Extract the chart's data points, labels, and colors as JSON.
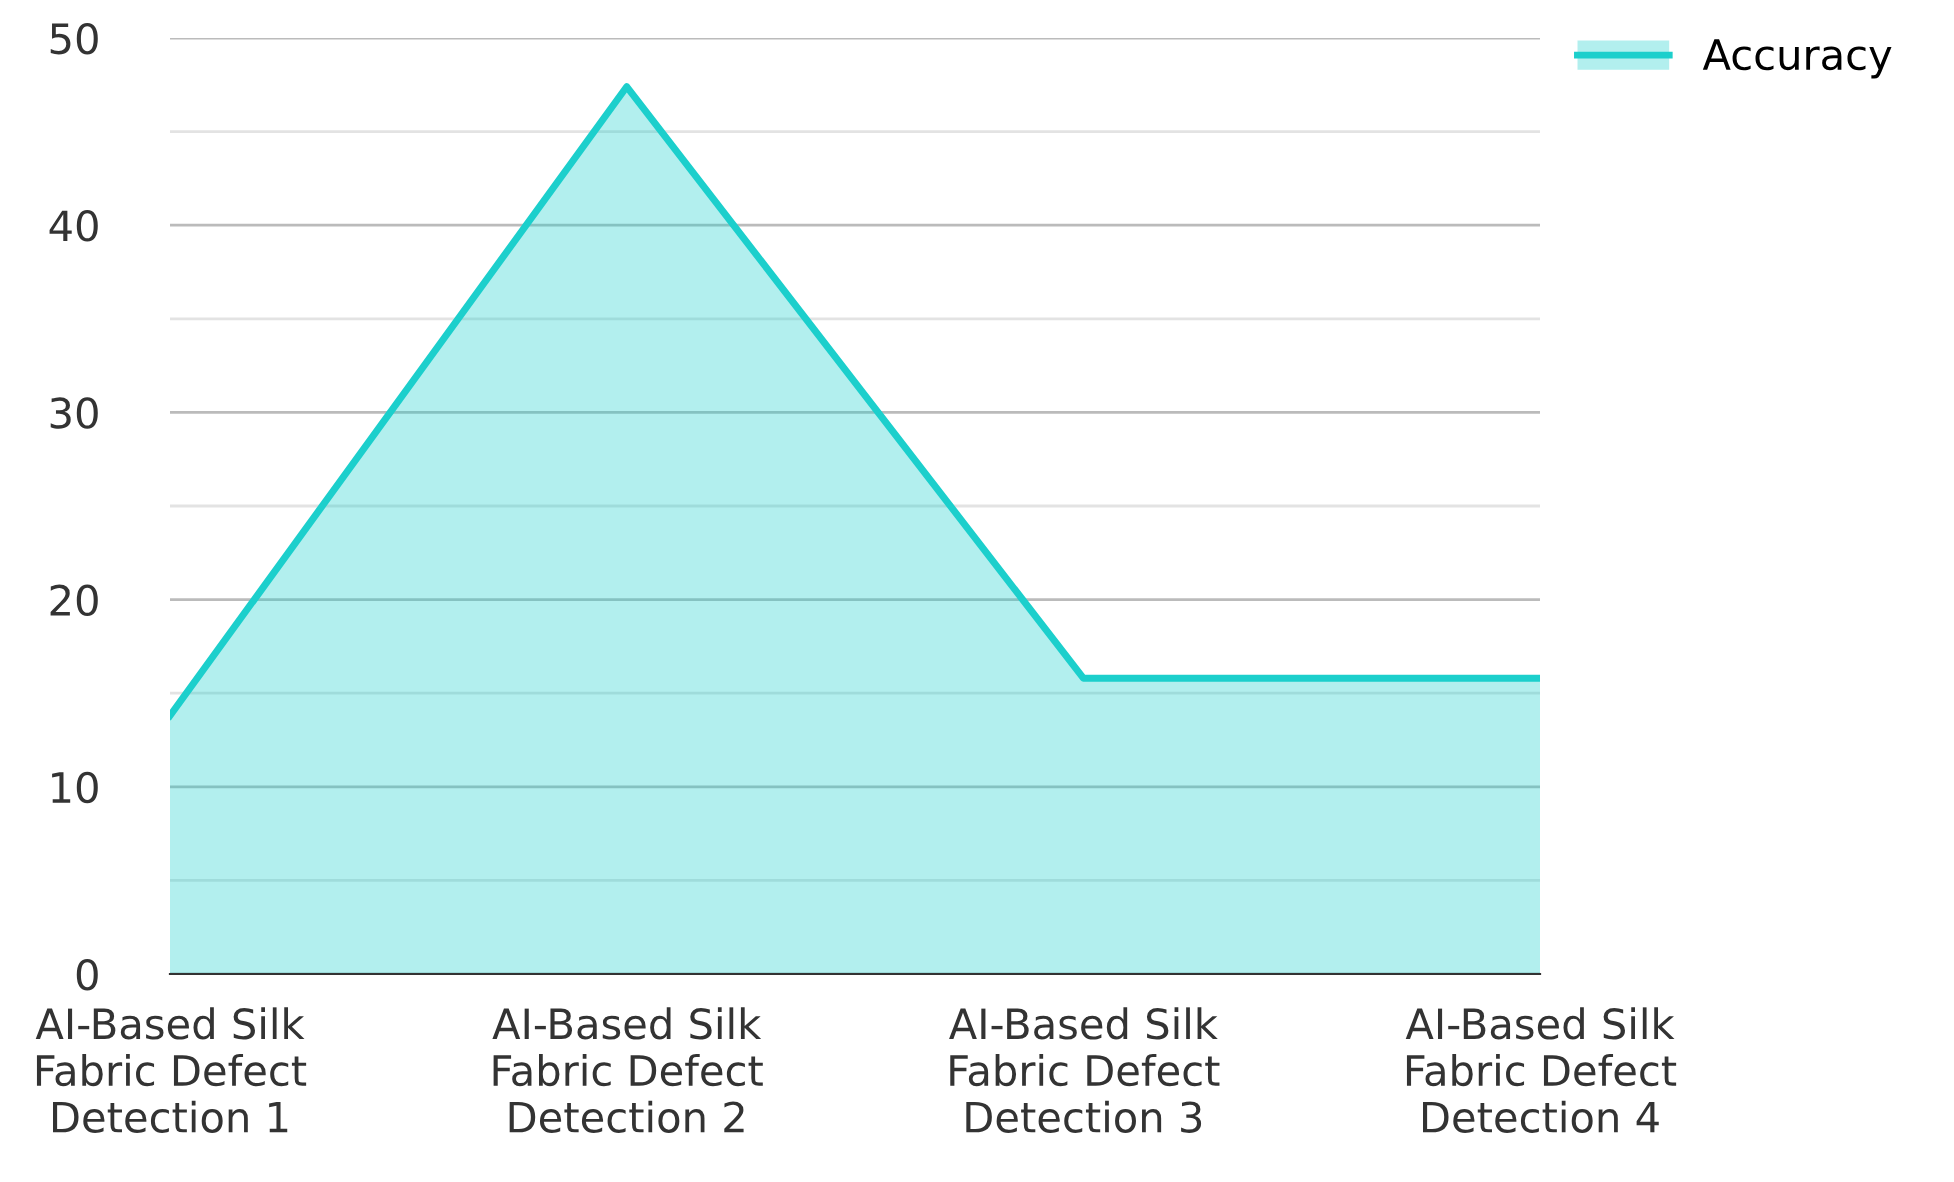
{
  "chart_data": {
    "type": "area",
    "categories": [
      "AI-Based Silk\nFabric Defect\nDetection 1",
      "AI-Based Silk\nFabric Defect\nDetection 2",
      "AI-Based Silk\nFabric Defect\nDetection 3",
      "AI-Based Silk\nFabric Defect\nDetection 4"
    ],
    "series": [
      {
        "name": "Accuracy",
        "color": "#1ccfcc",
        "values": [
          13.8,
          47.4,
          15.8,
          15.8
        ]
      }
    ],
    "ylim": [
      0,
      50
    ],
    "yticks": [
      0,
      {
        "value": 5,
        "label": null
      },
      10,
      {
        "value": 15,
        "label": null
      },
      20,
      {
        "value": 25,
        "label": null
      },
      30,
      {
        "value": 35,
        "label": null
      },
      40,
      {
        "value": 45,
        "label": null
      },
      50
    ],
    "grid": "y",
    "legend": "top right",
    "marker": "none",
    "line_style": "solid"
  }
}
